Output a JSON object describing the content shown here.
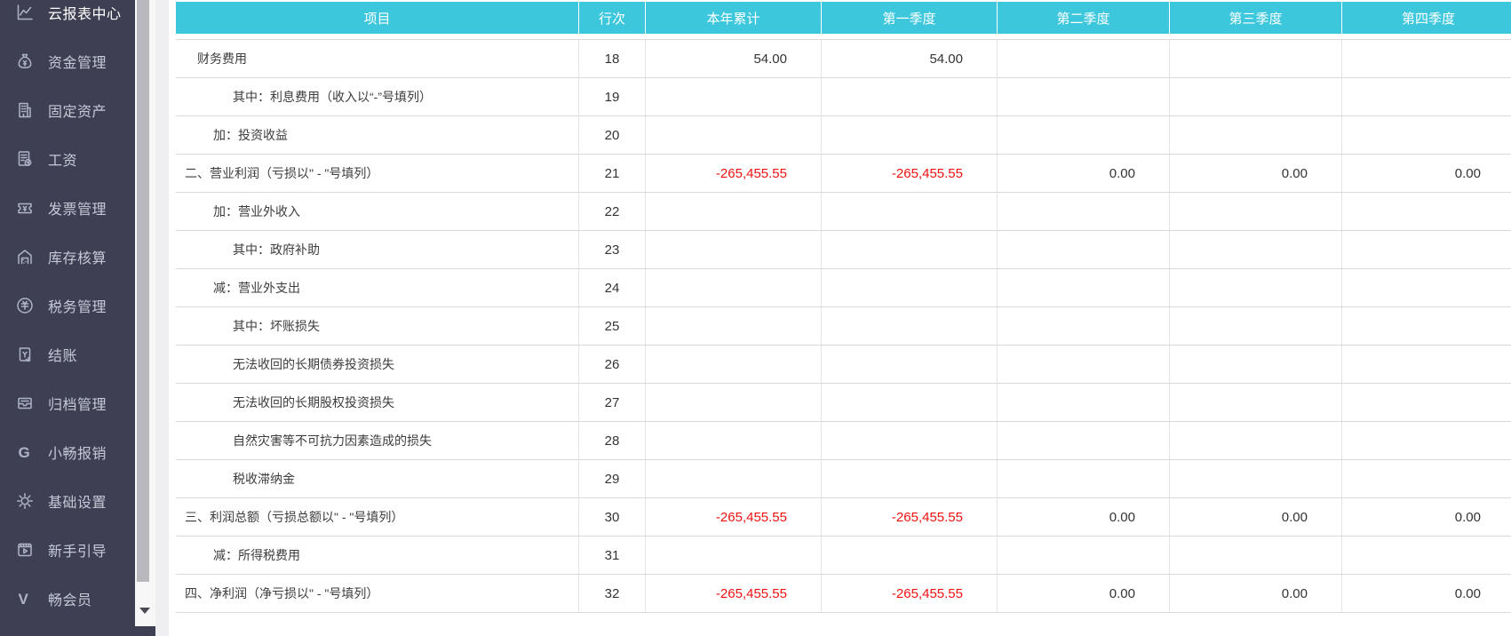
{
  "sidebar": {
    "items": [
      {
        "label": "云报表中心",
        "icon": "line-chart"
      },
      {
        "label": "资金管理",
        "icon": "money-bag"
      },
      {
        "label": "固定资产",
        "icon": "building"
      },
      {
        "label": "工资",
        "icon": "salary-doc"
      },
      {
        "label": "发票管理",
        "icon": "invoice"
      },
      {
        "label": "库存核算",
        "icon": "warehouse"
      },
      {
        "label": "税务管理",
        "icon": "tax-coin"
      },
      {
        "label": "结账",
        "icon": "closing-book"
      },
      {
        "label": "归档管理",
        "icon": "archive-tray"
      },
      {
        "label": "小畅报销",
        "icon": "letter-g"
      },
      {
        "label": "基础设置",
        "icon": "gear"
      },
      {
        "label": "新手引导",
        "icon": "guide-play"
      },
      {
        "label": "畅会员",
        "icon": "letter-v"
      }
    ]
  },
  "report_table": {
    "columns": [
      "项目",
      "行次",
      "本年累计",
      "第一季度",
      "第二季度",
      "第三季度",
      "第四季度"
    ],
    "rows": [
      {
        "item": "财务费用",
        "indent": 1,
        "line": "18",
        "values": [
          "54.00",
          "54.00",
          "",
          "",
          ""
        ]
      },
      {
        "item": "其中：利息费用（收入以“-”号填列）",
        "indent": 3,
        "line": "19",
        "values": [
          "",
          "",
          "",
          "",
          ""
        ]
      },
      {
        "item": "加：投资收益",
        "indent": 2,
        "line": "20",
        "values": [
          "",
          "",
          "",
          "",
          ""
        ]
      },
      {
        "item": "二、营业利润（亏损以\" - \"号填列）",
        "indent": 0,
        "line": "21",
        "values": [
          "-265,455.55",
          "-265,455.55",
          "0.00",
          "0.00",
          "0.00"
        ]
      },
      {
        "item": "加：营业外收入",
        "indent": 2,
        "line": "22",
        "values": [
          "",
          "",
          "",
          "",
          ""
        ]
      },
      {
        "item": "其中：政府补助",
        "indent": 3,
        "line": "23",
        "values": [
          "",
          "",
          "",
          "",
          ""
        ]
      },
      {
        "item": "减：营业外支出",
        "indent": 2,
        "line": "24",
        "values": [
          "",
          "",
          "",
          "",
          ""
        ]
      },
      {
        "item": "其中：坏账损失",
        "indent": 3,
        "line": "25",
        "values": [
          "",
          "",
          "",
          "",
          ""
        ]
      },
      {
        "item": "无法收回的长期债券投资损失",
        "indent": 3,
        "line": "26",
        "values": [
          "",
          "",
          "",
          "",
          ""
        ]
      },
      {
        "item": "无法收回的长期股权投资损失",
        "indent": 3,
        "line": "27",
        "values": [
          "",
          "",
          "",
          "",
          ""
        ]
      },
      {
        "item": "自然灾害等不可抗力因素造成的损失",
        "indent": 3,
        "line": "28",
        "values": [
          "",
          "",
          "",
          "",
          ""
        ]
      },
      {
        "item": "税收滞纳金",
        "indent": 3,
        "line": "29",
        "values": [
          "",
          "",
          "",
          "",
          ""
        ]
      },
      {
        "item": "三、利润总额（亏损总额以\" - \"号填列）",
        "indent": 0,
        "line": "30",
        "values": [
          "-265,455.55",
          "-265,455.55",
          "0.00",
          "0.00",
          "0.00"
        ]
      },
      {
        "item": "减：所得税费用",
        "indent": 2,
        "line": "31",
        "values": [
          "",
          "",
          "",
          "",
          ""
        ]
      },
      {
        "item": "四、净利润（净亏损以\" - \"号填列）",
        "indent": 0,
        "line": "32",
        "values": [
          "-265,455.55",
          "-265,455.55",
          "0.00",
          "0.00",
          "0.00"
        ]
      }
    ]
  },
  "colors": {
    "header_bg": "#3cc7dd",
    "negative_value": "#ee1111",
    "sidebar_bg": "#3e3f53"
  }
}
